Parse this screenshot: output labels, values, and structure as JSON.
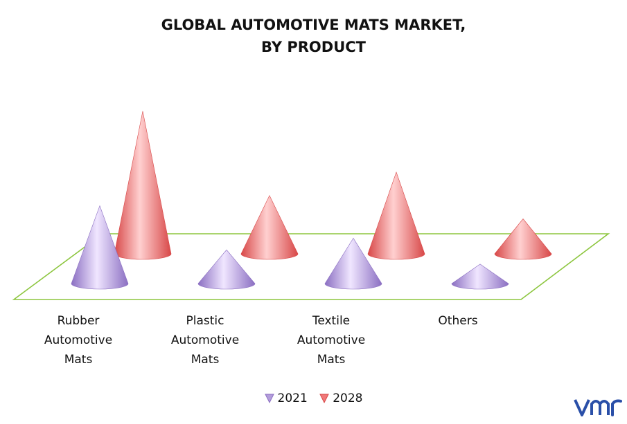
{
  "chart_data": {
    "type": "bar",
    "shape": "cone-3d",
    "title_lines": [
      "GLOBAL AUTOMOTIVE MATS MARKET,",
      "BY PRODUCT"
    ],
    "categories": [
      [
        "Rubber",
        "Automotive",
        "Mats"
      ],
      [
        "Plastic",
        "Automotive",
        "Mats"
      ],
      [
        "Textile",
        "Automotive",
        "Mats"
      ],
      [
        "Others"
      ]
    ],
    "series": [
      {
        "name": "2021",
        "color": "#b39ddb",
        "values": [
          12,
          5.2,
          7.0,
          3.0
        ]
      },
      {
        "name": "2028",
        "color": "#f07878",
        "values": [
          22,
          9.0,
          12.6,
          5.4
        ]
      }
    ],
    "ylim": [
      0,
      24
    ],
    "legend_position": "bottom",
    "grid": false,
    "floor_color": "#8dc63f"
  },
  "brand": {
    "logo_icon": "vmr-logo-icon",
    "logo_color": "#2a4fa8"
  }
}
